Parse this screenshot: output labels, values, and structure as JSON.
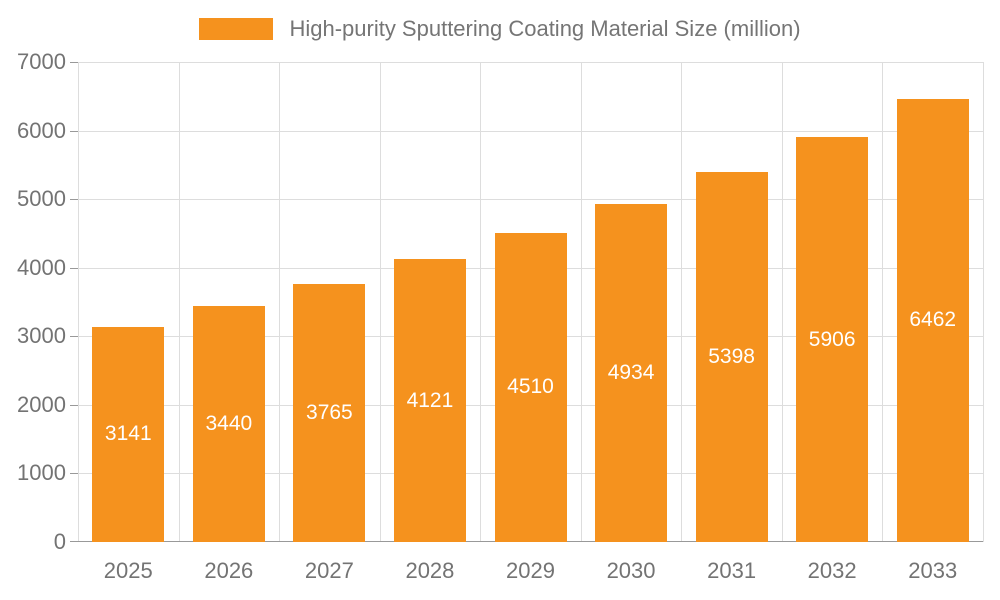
{
  "chart_data": {
    "type": "bar",
    "title": "High-purity Sputtering Coating Material Size (million)",
    "categories": [
      "2025",
      "2026",
      "2027",
      "2028",
      "2029",
      "2030",
      "2031",
      "2032",
      "2033"
    ],
    "values": [
      3141,
      3440,
      3765,
      4121,
      4510,
      4934,
      5398,
      5906,
      6462
    ],
    "xlabel": "",
    "ylabel": "",
    "ylim": [
      0,
      7000
    ],
    "ytick_step": 1000,
    "grid": true,
    "legend_position": "top",
    "bar_color": "#F5921E",
    "bar_value_label_color": "#ffffff",
    "axis_text_color": "#737373",
    "grid_color": "#dddddd",
    "axis_line_color": "#999999"
  }
}
